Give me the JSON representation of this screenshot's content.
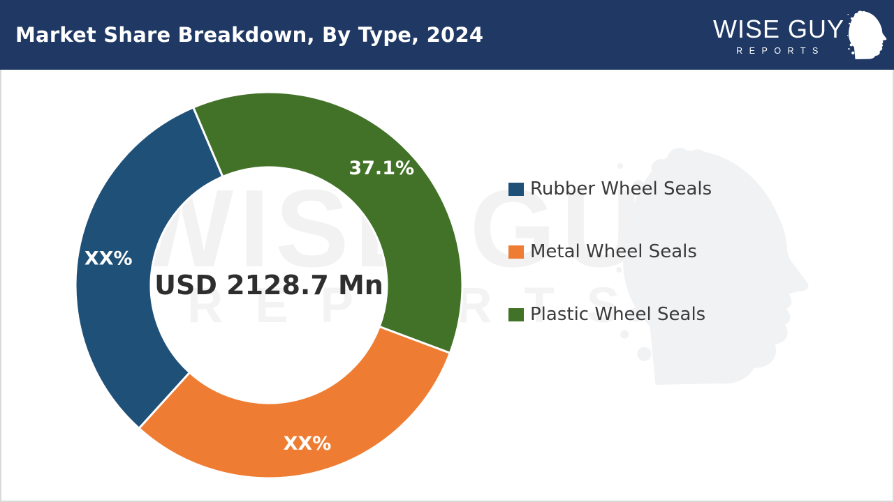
{
  "header": {
    "title": "Market Share Breakdown, By Type, 2024",
    "logo": {
      "brand": "WISE GUY",
      "sub": "REPORTS"
    }
  },
  "chart_data": {
    "type": "pie",
    "subtype": "donut",
    "title": "Market Share Breakdown, By Type, 2024",
    "center_label": "USD 2128.7 Mn",
    "start_angle_deg": 113,
    "direction": "counterclockwise",
    "legend_position": "right",
    "segments": [
      {
        "label": "Rubber Wheel Seals",
        "display_value": "XX%",
        "percent_est": 31.9,
        "color": "#1F5078"
      },
      {
        "label": "Metal Wheel Seals",
        "display_value": "XX%",
        "percent_est": 31.0,
        "color": "#EE7D33"
      },
      {
        "label": "Plastic Wheel Seals",
        "display_value": "37.1%",
        "percent_est": 37.1,
        "color": "#427227"
      }
    ]
  },
  "watermark": {
    "brand": "WISE GUY",
    "sub": "REPORTS"
  }
}
